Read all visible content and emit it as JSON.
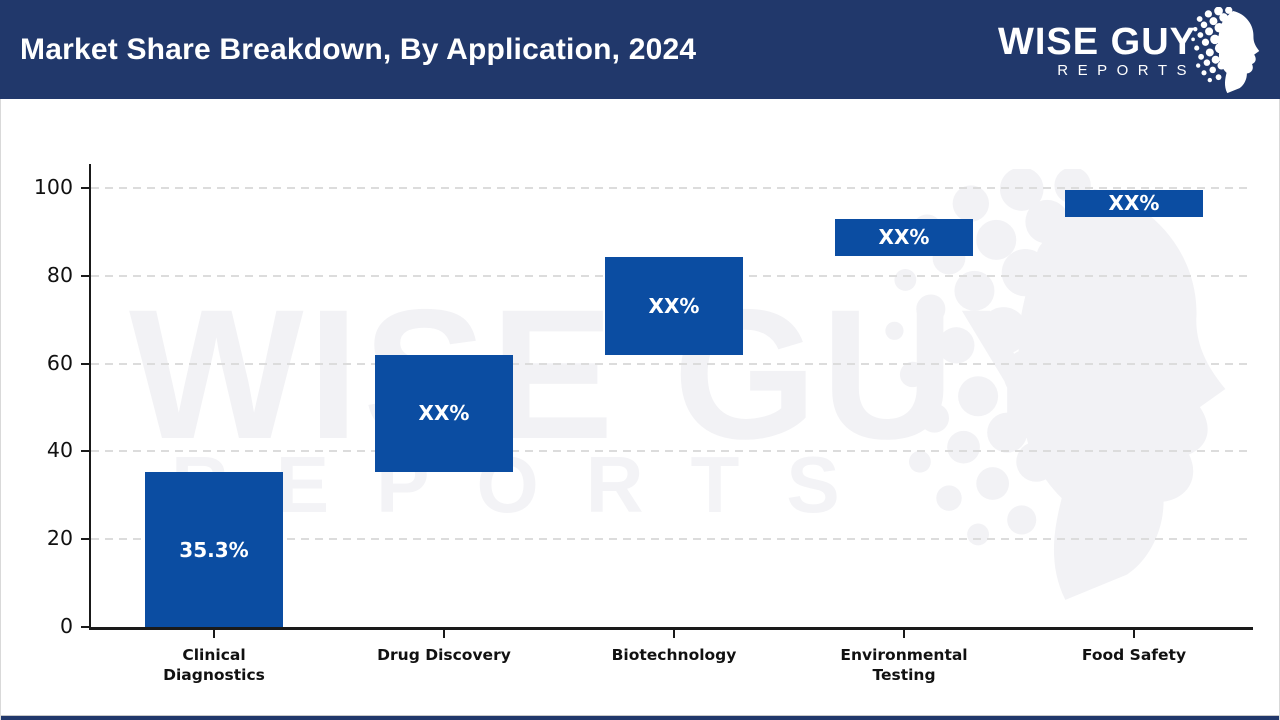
{
  "header": {
    "title": "Market Share Breakdown, By Application, 2024",
    "logo_line1": "WISE GUY",
    "logo_line2": "REPORTS"
  },
  "watermark": {
    "line1": "WISE GUY",
    "line2": "REPORTS"
  },
  "colors": {
    "header_bg": "#21386b",
    "footer_bg": "#21386b",
    "bar": "#0b4da2",
    "bar_label": "#ffffff",
    "grid": "#dcdcdc",
    "axis": "#1a1a1a"
  },
  "chart_data": {
    "type": "bar",
    "subtype": "waterfall",
    "title": "Market Share Breakdown, By Application, 2024",
    "xlabel": "",
    "ylabel": "",
    "ylim": [
      0,
      105.5
    ],
    "y_ticks": [
      0,
      20,
      40,
      60,
      80,
      100
    ],
    "grid": "horizontal-dashed",
    "legend": "none",
    "bar_color": "#0b4da2",
    "bar_label_color": "#ffffff",
    "categories": [
      "Clinical Diagnostics",
      "Drug Discovery",
      "Biotechnology",
      "Environmental Testing",
      "Food Safety"
    ],
    "segments": [
      {
        "category": "Clinical Diagnostics",
        "lines": [
          "Clinical",
          "Diagnostics"
        ],
        "start": 0,
        "end": 35.3,
        "label": "35.3%"
      },
      {
        "category": "Drug Discovery",
        "lines": [
          "Drug Discovery"
        ],
        "start": 35.3,
        "end": 62.0,
        "label": "XX%"
      },
      {
        "category": "Biotechnology",
        "lines": [
          "Biotechnology"
        ],
        "start": 62.0,
        "end": 84.3,
        "label": "XX%"
      },
      {
        "category": "Environmental Testing",
        "lines": [
          "Environmental",
          "Testing"
        ],
        "start": 84.6,
        "end": 92.9,
        "label": "XX%"
      },
      {
        "category": "Food Safety",
        "lines": [
          "Food Safety"
        ],
        "start": 93.4,
        "end": 99.6,
        "label": "XX%"
      }
    ]
  }
}
